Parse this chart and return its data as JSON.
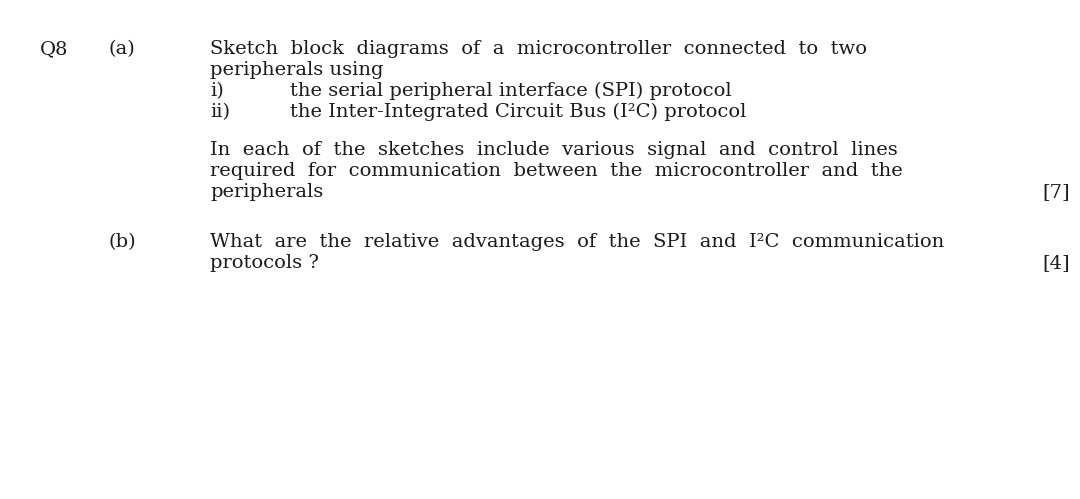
{
  "background_color": "#ffffff",
  "text_color": "#1a1a1a",
  "font_family": "DejaVu Serif",
  "font_size_main": 14.0,
  "q_label": "Q8",
  "a_label": "(a)",
  "b_label": "(b)",
  "line1": "Sketch  block  diagrams  of  a  microcontroller  connected  to  two",
  "line2": "peripherals using",
  "line3_i": "i)",
  "line3_text": "the serial peripheral interface (SPI) protocol",
  "line4_i": "ii)",
  "line4_text": "the Inter-Integrated Circuit Bus (I²C) protocol",
  "line5": "In  each  of  the  sketches  include  various  signal  and  control  lines",
  "line6": "required  for  communication  between  the  microcontroller  and  the",
  "line7": "peripherals",
  "mark1": "[7]",
  "b_line1": "What  are  the  relative  advantages  of  the  SPI  and  I²C  communication",
  "b_line2": "protocols ?",
  "mark2": "[4]"
}
